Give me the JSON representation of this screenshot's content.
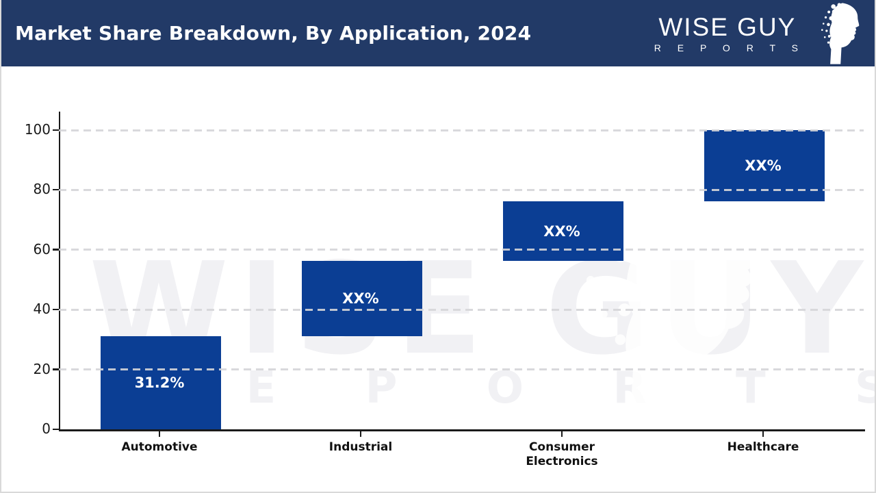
{
  "header": {
    "title": "Market Share Breakdown, By Application, 2024",
    "logo": {
      "line1": "WISE GUY",
      "line2": "R E P O R T S"
    }
  },
  "watermark": {
    "line1": "WISE GUY",
    "line2": "R E P O R T S"
  },
  "colors": {
    "header_bg": "#223a67",
    "bar": "#0b3e94",
    "bar_label": "#ffffff",
    "axis": "#1a1a1a",
    "grid": "#d5d5d8",
    "watermark": "#f1f1f4",
    "title_text": "#ffffff"
  },
  "chart_data": {
    "type": "bar",
    "subtype": "floating-waterfall",
    "title": "Market Share Breakdown, By Application, 2024",
    "categories": [
      "Automotive",
      "Industrial",
      "Consumer\nElectronics",
      "Healthcare"
    ],
    "bars": [
      {
        "category": "Automotive",
        "start": 0,
        "end": 31.2,
        "label": "31.2%"
      },
      {
        "category": "Industrial",
        "start": 31.2,
        "end": 56.2,
        "label": "XX%"
      },
      {
        "category": "Consumer Electronics",
        "start": 56.2,
        "end": 76.2,
        "label": "XX%"
      },
      {
        "category": "Healthcare",
        "start": 76.2,
        "end": 100,
        "label": "XX%"
      }
    ],
    "yticks": [
      0,
      20,
      40,
      60,
      80,
      100
    ],
    "ylim": [
      0,
      106.2
    ],
    "xlabel": "",
    "ylabel": "",
    "grid": "dashed-horizontal",
    "legend": "none"
  }
}
